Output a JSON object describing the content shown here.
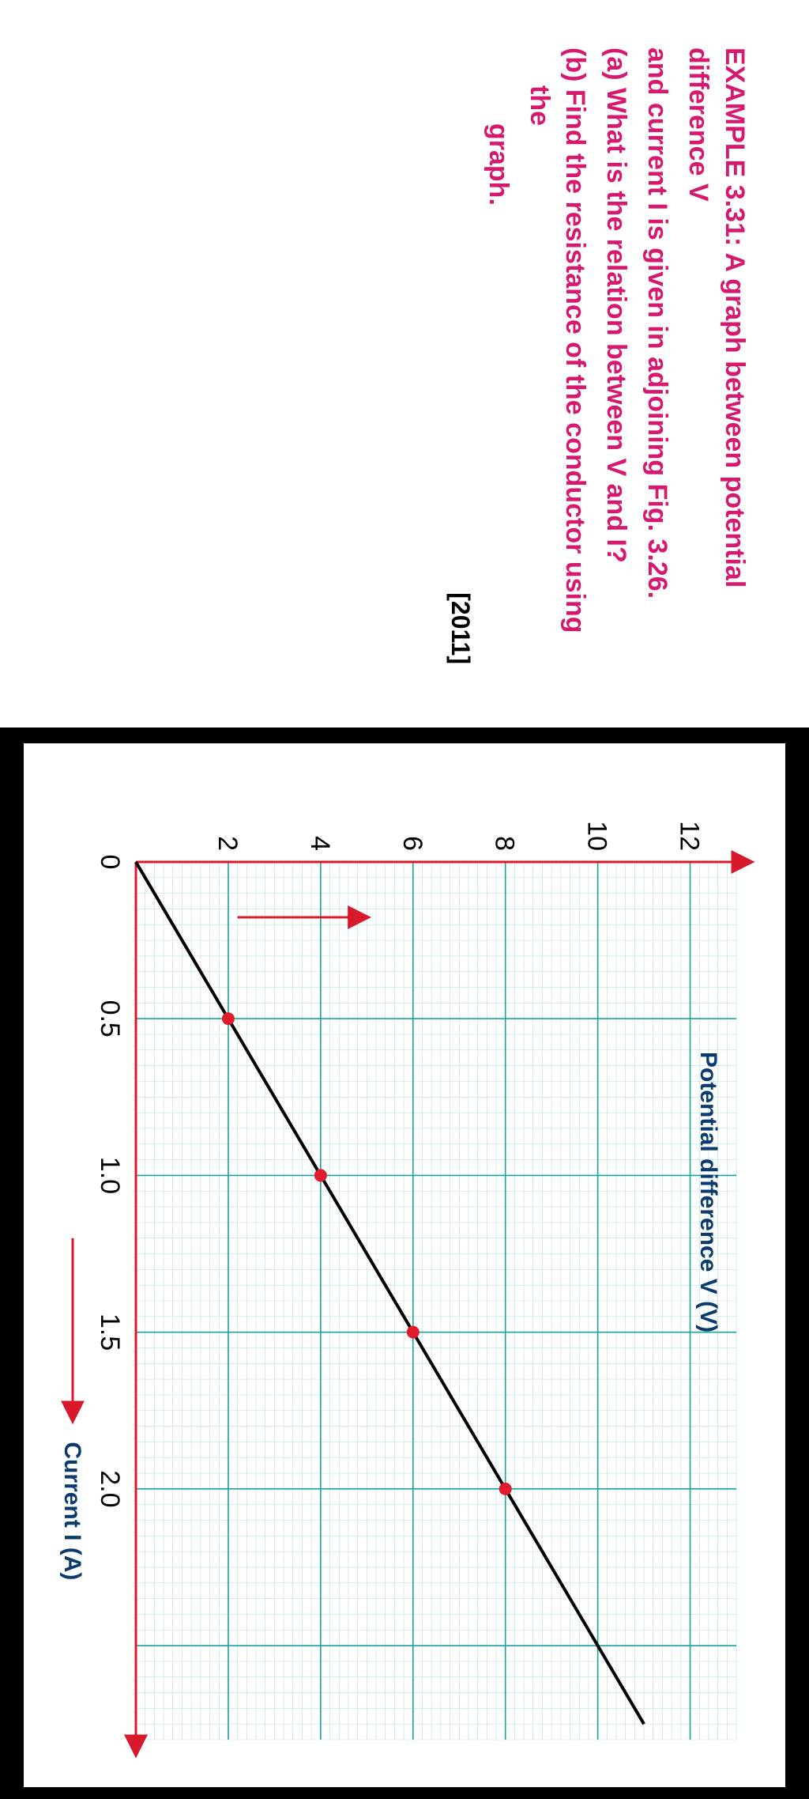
{
  "question": {
    "prefix": "EXAMPLE 3.31:",
    "stem_1": "A graph between potential difference V",
    "stem_2": "and current I is given in adjoining Fig. 3.26.",
    "part_a": "(a) What is the relation between V and I?",
    "part_b_1": "(b) Find the resistance of the conductor using the",
    "part_b_2": "graph.",
    "year": "[2011]"
  },
  "chart": {
    "type": "line",
    "background_color": "#ffffff",
    "grid_major_color": "#1aa39a",
    "grid_minor_color": "#b8e3df",
    "axis_color": "#d8182b",
    "line_color": "#000000",
    "line_width": 4,
    "point_color": "#e11b2e",
    "point_radius": 8,
    "y_axis_label": "Potential difference V (V)",
    "x_axis_label": "Current I (A)",
    "label_color": "#0b3b6e",
    "label_fontsize": 30,
    "tick_fontsize": 34,
    "x_ticks": [
      0,
      0.5,
      1.0,
      1.5,
      2.0
    ],
    "y_ticks": [
      2,
      4,
      6,
      8,
      10,
      12
    ],
    "xlim": [
      0,
      2.8
    ],
    "ylim": [
      0,
      13
    ],
    "points": [
      {
        "x": 0.5,
        "y": 2
      },
      {
        "x": 1.0,
        "y": 4
      },
      {
        "x": 1.5,
        "y": 6
      },
      {
        "x": 2.0,
        "y": 8
      }
    ],
    "line_from": {
      "x": 0,
      "y": 0
    },
    "line_to": {
      "x": 2.75,
      "y": 11
    }
  }
}
